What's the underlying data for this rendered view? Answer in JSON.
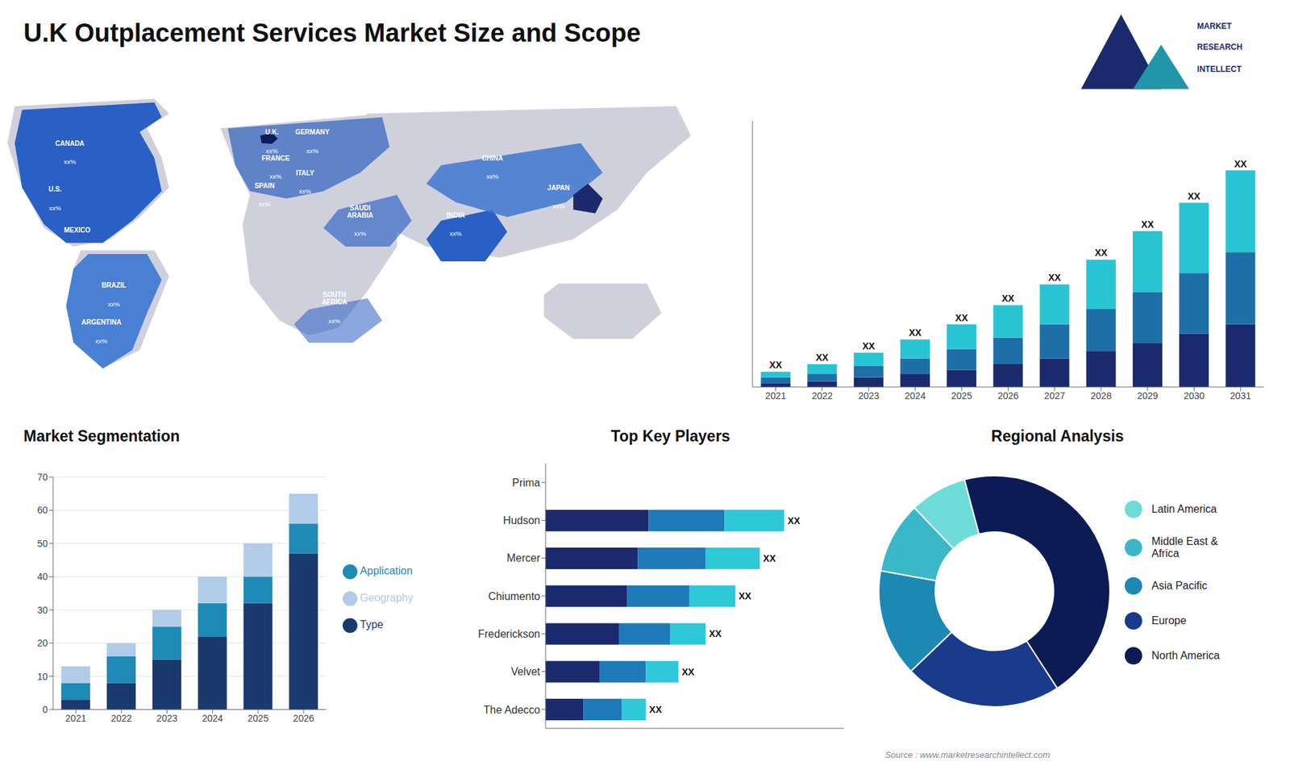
{
  "chart_data": [
    {
      "type": "bar",
      "title": "U.K Outplacement Services Market Size and Scope",
      "categories": [
        "2021",
        "2022",
        "2023",
        "2024",
        "2025",
        "2026",
        "2027",
        "2028",
        "2029",
        "2030",
        "2031"
      ],
      "series": [
        {
          "color": "#1a2a6c",
          "values": [
            2,
            3,
            5,
            7,
            9,
            12,
            15,
            19,
            23,
            28,
            33
          ]
        },
        {
          "color": "#1e6fa8",
          "values": [
            3,
            4,
            6,
            8,
            11,
            14,
            18,
            22,
            27,
            32,
            38
          ]
        },
        {
          "color": "#29c4d4",
          "values": [
            3,
            5,
            7,
            10,
            13,
            17,
            21,
            26,
            32,
            37,
            43
          ],
          "value_labels": [
            "XX",
            "XX",
            "XX",
            "XX",
            "XX",
            "XX",
            "XX",
            "XX",
            "XX",
            "XX",
            "XX"
          ]
        }
      ],
      "stacked": true,
      "ylim": [
        0,
        140
      ],
      "tick_labels": "x",
      "grid": false,
      "annotations": [
        "MARKET",
        "RESEARCH",
        "INTELLECT",
        "Source : www.marketresearchintellect.com"
      ]
    },
    {
      "type": "map",
      "annotations": [
        "CANADA",
        "xx%",
        "U.S.",
        "xx%",
        "MEXICO",
        "xx%",
        "BRAZIL",
        "xx%",
        "ARGENTINA",
        "xx%",
        "U.K.",
        "xx%",
        "FRANCE",
        "xx%",
        "SPAIN",
        "xx%",
        "GERMANY",
        "xx%",
        "ITALY",
        "xx%",
        "SAUDI\nARABIA",
        "xx%",
        "SOUTH\nAFRICA",
        "xx%",
        "CHINA",
        "xx%",
        "INDIA",
        "xx%",
        "JAPAN",
        "xx%"
      ]
    },
    {
      "type": "bar",
      "title": "Market Segmentation",
      "categories": [
        "2021",
        "2022",
        "2023",
        "2024",
        "2025",
        "2026"
      ],
      "series": [
        {
          "name": "Type",
          "color": "#1a3a6e",
          "values": [
            3,
            8,
            15,
            22,
            32,
            47
          ]
        },
        {
          "name": "Application",
          "color": "#1e8ab5",
          "values": [
            5,
            8,
            10,
            10,
            8,
            9
          ]
        },
        {
          "name": "Geography",
          "color": "#b0cce8",
          "values": [
            5,
            4,
            5,
            8,
            10,
            9
          ]
        }
      ],
      "stacked": true,
      "ylim": [
        0,
        70
      ],
      "yticks": [
        0,
        10,
        20,
        30,
        40,
        50,
        60,
        70
      ],
      "grid": true,
      "legend": "right"
    },
    {
      "type": "bar",
      "orientation": "horizontal",
      "title": "Top Key Players",
      "categories": [
        "Prima",
        "Hudson",
        "Mercer",
        "Chiumento",
        "Frederickson",
        "Velvet",
        "The Adecco"
      ],
      "series": [
        {
          "color": "#1a2a6c",
          "values": [
            0,
            38,
            34,
            30,
            27,
            20,
            14
          ]
        },
        {
          "color": "#1e7ab8",
          "values": [
            0,
            28,
            25,
            23,
            19,
            17,
            14
          ]
        },
        {
          "color": "#2ec8d8",
          "values": [
            0,
            22,
            20,
            17,
            13,
            12,
            9
          ],
          "value_labels": [
            null,
            "XX",
            "XX",
            "XX",
            "XX",
            "XX",
            "XX"
          ]
        }
      ],
      "stacked": true,
      "xlim": [
        0,
        110
      ],
      "tick_labels": "y",
      "grid": false
    },
    {
      "type": "pie",
      "title": "Regional Analysis",
      "categories": [
        "Latin America",
        "Middle East &\nAfrica",
        "Asia Pacific",
        "Europe",
        "North America"
      ],
      "values": [
        8,
        10,
        15,
        22,
        45
      ],
      "colors": [
        "#6ddcd8",
        "#3ab8c8",
        "#1e88b4",
        "#1a3a8c",
        "#0d1b55"
      ],
      "legend": "right"
    }
  ]
}
